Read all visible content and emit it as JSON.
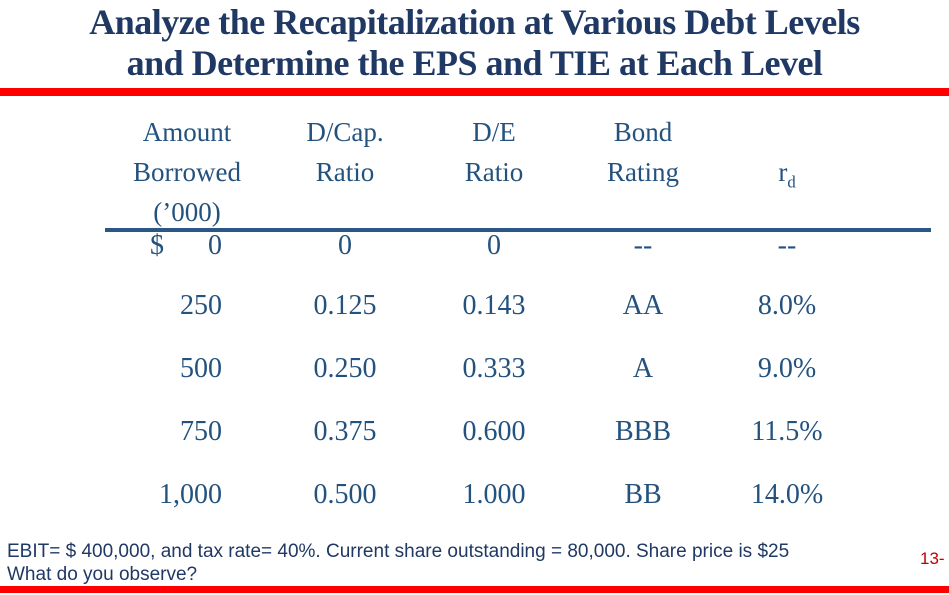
{
  "slide": {
    "title_line1": "Analyze the Recapitalization at Various Debt Levels",
    "title_line2": "and Determine the EPS and TIE at Each Level",
    "footnote_line1": "EBIT= $ 400,000, and tax rate= 40%. Current share outstanding = 80,000. Share price is $25",
    "footnote_line2": "What do you observe?",
    "page_number": "13-"
  },
  "colors": {
    "title_blue": "#1F3864",
    "table_blue": "#24527F",
    "accent_red": "#FE0000",
    "page_number_red": "#C00000"
  },
  "table": {
    "columns": [
      {
        "id": "amount",
        "lines": [
          "Amount",
          "Borrowed",
          "(’000)"
        ]
      },
      {
        "id": "d_cap",
        "lines": [
          "D/Cap.",
          "Ratio"
        ]
      },
      {
        "id": "d_e",
        "lines": [
          "D/E",
          "Ratio"
        ]
      },
      {
        "id": "rating",
        "lines": [
          "Bond",
          "Rating"
        ]
      },
      {
        "id": "rd",
        "lines": [
          "r"
        ],
        "sub": "d",
        "offset": true
      }
    ],
    "rows": [
      {
        "currency": "$",
        "amount": "0",
        "d_cap": "0",
        "d_e": "0",
        "rating": "--",
        "rd": "--"
      },
      {
        "currency": "",
        "amount": "250",
        "d_cap": "0.125",
        "d_e": "0.143",
        "rating": "AA",
        "rd": "8.0%"
      },
      {
        "currency": "",
        "amount": "500",
        "d_cap": "0.250",
        "d_e": "0.333",
        "rating": "A",
        "rd": "9.0%"
      },
      {
        "currency": "",
        "amount": "750",
        "d_cap": "0.375",
        "d_e": "0.600",
        "rating": "BBB",
        "rd": "11.5%"
      },
      {
        "currency": "",
        "amount": "1,000",
        "d_cap": "0.500",
        "d_e": "1.000",
        "rating": "BB",
        "rd": "14.0%"
      }
    ]
  }
}
